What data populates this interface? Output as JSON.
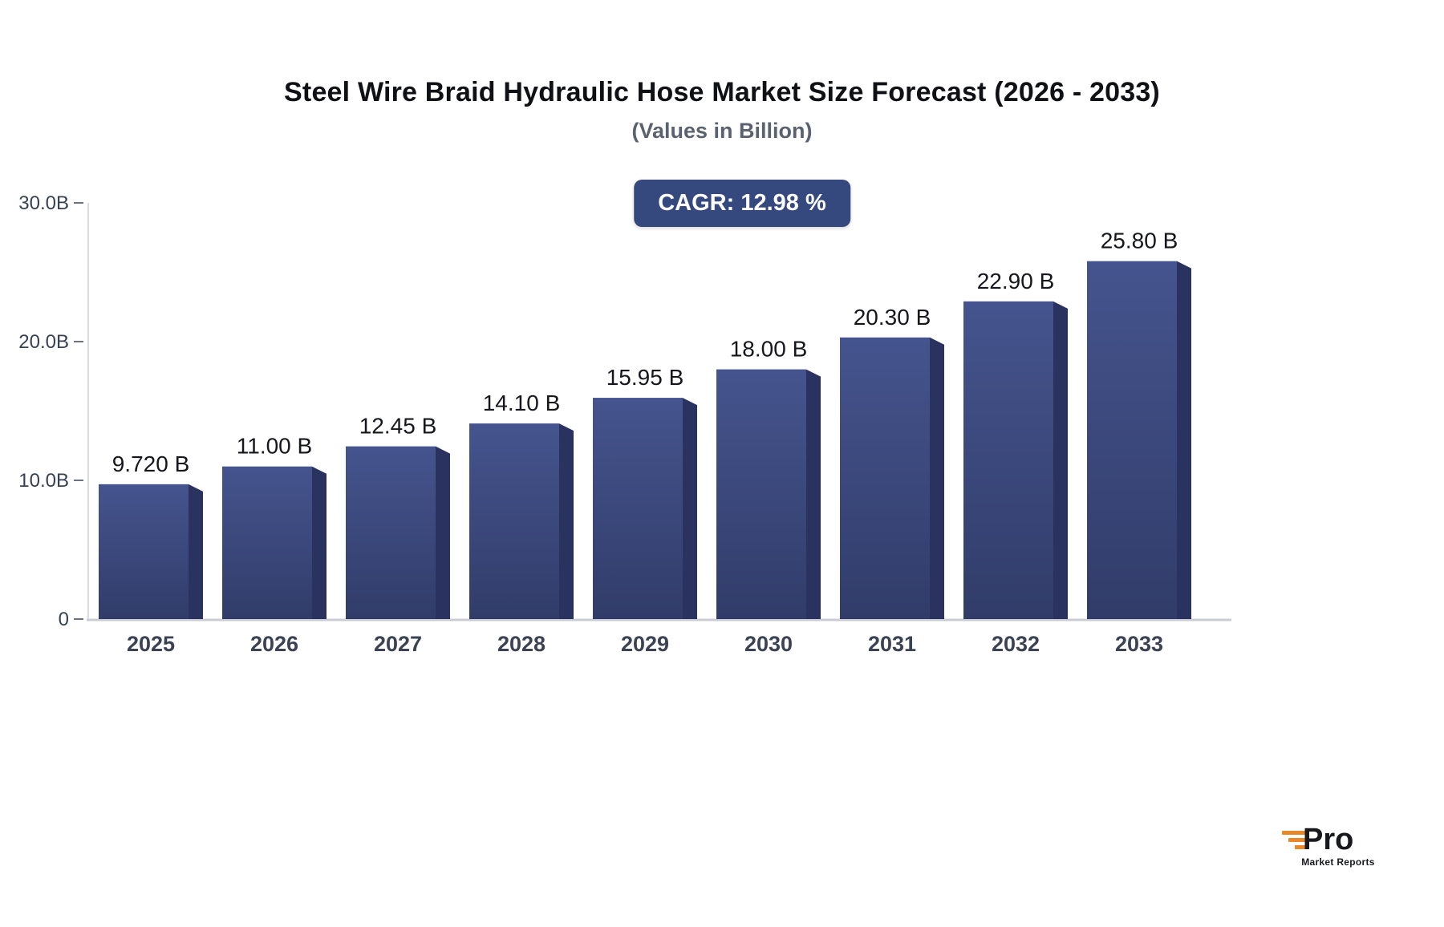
{
  "title": "Steel Wire Braid Hydraulic Hose Market Size Forecast (2026 - 2033)",
  "subtitle": "(Values in Billion)",
  "cagr_label": "CAGR: 12.98 %",
  "logo": {
    "name": "Pro",
    "sub": "Market Reports"
  },
  "chart_data": {
    "type": "bar",
    "title": "Steel Wire Braid Hydraulic Hose Market Size Forecast (2026 - 2033)",
    "subtitle": "(Values in Billion)",
    "categories": [
      "2025",
      "2026",
      "2027",
      "2028",
      "2029",
      "2030",
      "2031",
      "2032",
      "2033"
    ],
    "values": [
      9.72,
      11.0,
      12.45,
      14.1,
      15.95,
      18.0,
      20.3,
      22.9,
      25.8
    ],
    "value_labels": [
      "9.720 B",
      "11.00 B",
      "12.45 B",
      "14.10 B",
      "15.95 B",
      "18.00 B",
      "20.30 B",
      "22.90 B",
      "25.80 B"
    ],
    "xlabel": "",
    "ylabel": "",
    "ylim": [
      0,
      30
    ],
    "yticks": [
      0,
      10,
      20,
      30
    ],
    "ytick_labels": [
      "0",
      "10.0B",
      "20.0B",
      "30.0B"
    ],
    "cagr_percent": 12.98,
    "grid": false,
    "legend": false,
    "colors": {
      "bar_top": "#45548e",
      "bar_bottom": "#313c69",
      "bar_side": "#2a3360",
      "axis_line": "#c9ccd2",
      "axis_vline": "#d9dce1",
      "tick_mark": "#6b7280",
      "badge_bg": "#36497e",
      "badge_text": "#ffffff"
    }
  }
}
